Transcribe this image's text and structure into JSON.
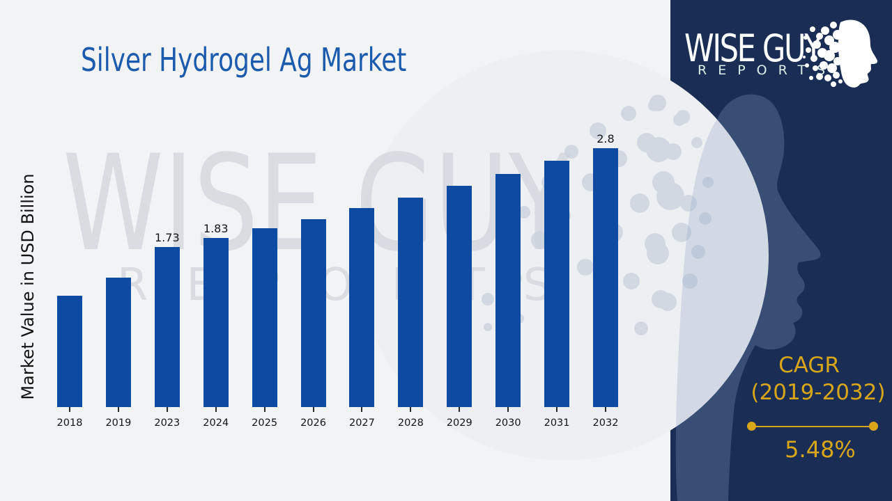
{
  "header": {
    "title": "Silver Hydrogel Ag Market"
  },
  "chart_data": {
    "type": "bar",
    "title": "Silver Hydrogel Ag Market",
    "xlabel": "",
    "ylabel": "Market Value in USD Billion",
    "categories": [
      "2018",
      "2019",
      "2023",
      "2024",
      "2025",
      "2026",
      "2027",
      "2028",
      "2029",
      "2030",
      "2031",
      "2032"
    ],
    "values": [
      1.2,
      1.4,
      1.73,
      1.83,
      1.93,
      2.03,
      2.15,
      2.26,
      2.39,
      2.52,
      2.66,
      2.8
    ],
    "value_labels": [
      "",
      "",
      "1.73",
      "1.83",
      "",
      "",
      "",
      "",
      "",
      "",
      "",
      "2.8"
    ],
    "bar_color": "#0d4aa1",
    "ylim": [
      0,
      3.1
    ],
    "grid": false,
    "legend": "none"
  },
  "branding": {
    "logo_line1": "WISE GUY",
    "logo_line2": "REPORTS",
    "watermark_line1": "WISE GUY",
    "watermark_line2": "REPORTS"
  },
  "sidebar": {
    "cagr_label": "CAGR",
    "cagr_period": "(2019-2032)",
    "cagr_value": "5.48%"
  },
  "colors": {
    "panel_navy": "#1a2e55",
    "gold": "#d8a617",
    "bar_blue": "#0d4aa1",
    "title_blue": "#1b5bad",
    "background": "#f2f3f5"
  }
}
